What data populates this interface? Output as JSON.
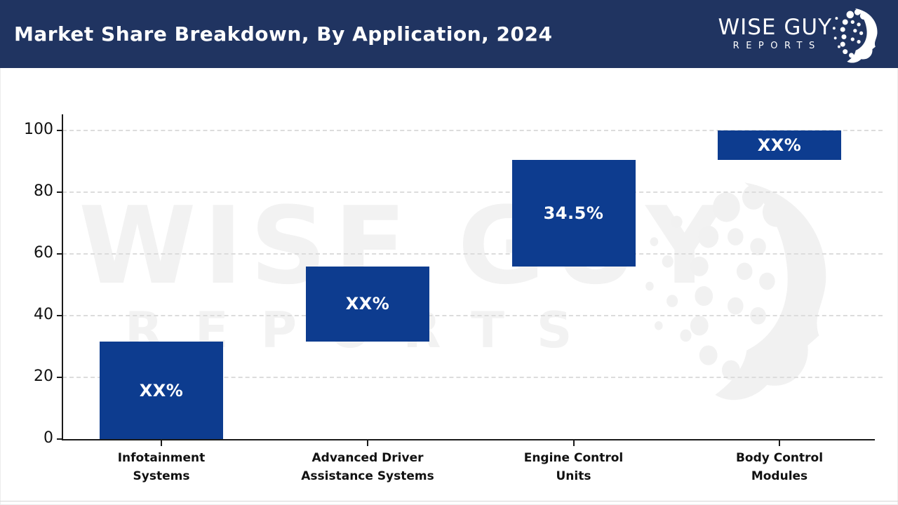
{
  "header": {
    "title": "Market Share Breakdown, By Application, 2024",
    "bg_color": "#203461",
    "logo": {
      "name": "WISE GUY",
      "sub": "REPORTS"
    }
  },
  "watermark": {
    "line1": "WISE GUY",
    "line2": "REPORTS"
  },
  "chart_data": {
    "type": "bar",
    "subtype": "waterfall",
    "title": "Market Share Breakdown, By Application, 2024",
    "categories": [
      "Infotainment Systems",
      "Advanced Driver Assistance Systems",
      "Engine Control Units",
      "Body Control Modules"
    ],
    "category_lines": [
      [
        "Infotainment",
        "Systems"
      ],
      [
        "Advanced Driver",
        "Assistance Systems"
      ],
      [
        "Engine Control",
        "Units"
      ],
      [
        "Body Control",
        "Modules"
      ]
    ],
    "segments": [
      {
        "category": "Infotainment Systems",
        "start": 0,
        "end": 31.5,
        "label": "XX%"
      },
      {
        "category": "Advanced Driver Assistance Systems",
        "start": 31.5,
        "end": 56,
        "label": "XX%"
      },
      {
        "category": "Engine Control Units",
        "start": 56,
        "end": 90.5,
        "label": "34.5%"
      },
      {
        "category": "Body Control Modules",
        "start": 90.5,
        "end": 100,
        "label": "XX%"
      }
    ],
    "ylim": [
      0,
      100
    ],
    "yticks": [
      0,
      20,
      40,
      60,
      80,
      100
    ],
    "grid": "horizontal-dashed",
    "legend": "none",
    "bar_color": "#0d3c8f",
    "bar_label_color": "#ffffff",
    "axis_color": "#1a1a1a"
  }
}
